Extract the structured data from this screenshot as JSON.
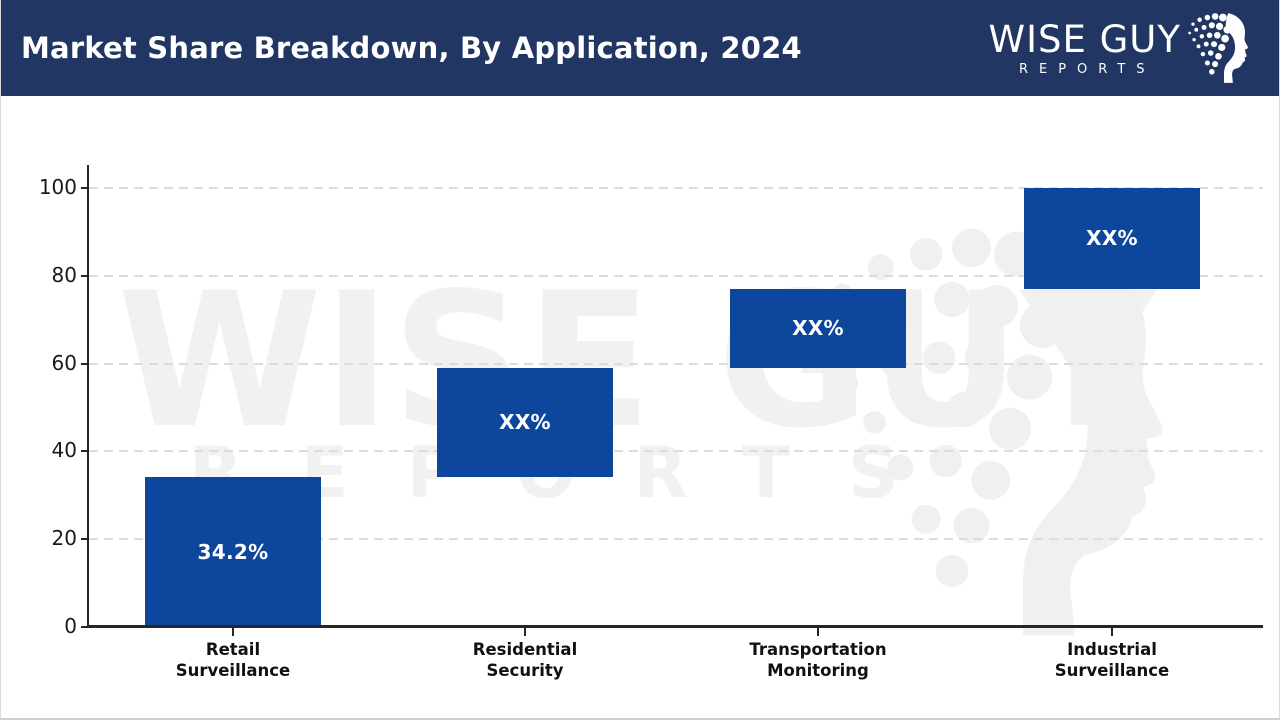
{
  "header": {
    "title": "Market Share Breakdown, By Application, 2024",
    "bg_color": "#213663",
    "logo": {
      "name": "WISE GUY",
      "sub": "REPORTS"
    }
  },
  "watermark": {
    "line1": "WISE GUY",
    "line2": "REPORTS"
  },
  "chart_data": {
    "type": "bar",
    "variant": "floating-segment-waterfall",
    "title": "Market Share Breakdown, By Application, 2024",
    "xlabel": "",
    "ylabel": "",
    "ylim": [
      0,
      105
    ],
    "yticks": [
      0,
      20,
      40,
      60,
      80,
      100
    ],
    "grid": {
      "axis": "y",
      "style": "dashed",
      "color": "#dcdcdc"
    },
    "legend": null,
    "bar_color": "#0c479d",
    "value_label_color": "#ffffff",
    "categories": [
      [
        "Retail",
        "Surveillance"
      ],
      [
        "Residential",
        "Security"
      ],
      [
        "Transportation",
        "Monitoring"
      ],
      [
        "Industrial",
        "Surveillance"
      ]
    ],
    "bars": [
      {
        "category": "Retail Surveillance",
        "start": 0,
        "end": 34.2,
        "segment_value": 34.2,
        "value_label": "34.2%"
      },
      {
        "category": "Residential Security",
        "start": 34.2,
        "end": 59,
        "segment_value": 24.8,
        "value_label": "XX%"
      },
      {
        "category": "Transportation Monitoring",
        "start": 59,
        "end": 77,
        "segment_value": 18,
        "value_label": "XX%"
      },
      {
        "category": "Industrial Surveillance",
        "start": 77,
        "end": 100,
        "segment_value": 23,
        "value_label": "XX%"
      }
    ]
  }
}
